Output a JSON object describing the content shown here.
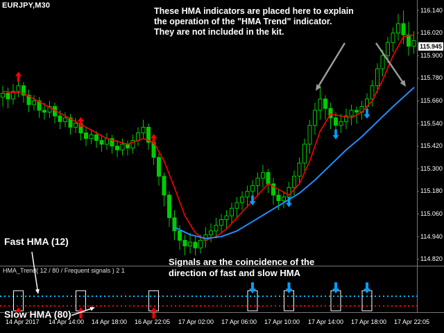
{
  "window": {
    "symbol_label": "EURJPY,M30"
  },
  "annotations": {
    "explain": {
      "lines": [
        "These HMA indicators are placed here to explain",
        "the operation of the \"HMA Trend\" indicator.",
        "They are not included in the kit."
      ]
    },
    "fast_hma_label": "Fast HMA (12)",
    "slow_hma_label": "Slow HMA (80)",
    "signals_note": {
      "lines": [
        "Signals are the coincidence of the",
        "direction of fast and slow HMA"
      ]
    }
  },
  "indicator_pane": {
    "label": "HMA_Trend( 12 / 80 / Frequent signals ) 2 1"
  },
  "price_scale": {
    "labels": [
      "116.140",
      "116.020",
      "115.900",
      "115.780",
      "115.660",
      "115.540",
      "115.420",
      "115.300",
      "115.180",
      "115.060",
      "114.940",
      "114.820"
    ],
    "current_price": "115.945"
  },
  "time_scale": {
    "labels": [
      "14 Apr 2017",
      "14 Apr 14:00",
      "14 Apr 18:00",
      "16 Apr 22:05",
      "17 Apr 02:00",
      "17 Apr 06:00",
      "17 Apr 10:00",
      "17 Apr 14:00",
      "17 Apr 18:00",
      "17 Apr 22:05"
    ]
  },
  "colors": {
    "background": "#000000",
    "candle": "#00CC00",
    "fast_hma": "#FF0000",
    "slow_hma": "#1E90FF",
    "buy": "#00A0FF",
    "sell": "#FF0000",
    "pane_top_dots": "#00BFFF",
    "pane_bottom_dots": "#FF0000",
    "separator": "#787878",
    "annotation_arrow": "#9A9A9A",
    "signal_box": "#FFFFFF"
  },
  "chart_data": {
    "type": "candlestick",
    "symbol": "EURJPY",
    "timeframe": "M30",
    "y_axis": {
      "ticks": [
        116.14,
        116.02,
        115.9,
        115.78,
        115.66,
        115.54,
        115.42,
        115.3,
        115.18,
        115.06,
        114.94,
        114.82
      ],
      "current": 115.945
    },
    "x_axis": {
      "ticks": [
        "14 Apr 2017",
        "14 Apr 14:00",
        "14 Apr 18:00",
        "16 Apr 22:05",
        "17 Apr 02:00",
        "17 Apr 06:00",
        "17 Apr 10:00",
        "17 Apr 14:00",
        "17 Apr 18:00",
        "17 Apr 22:05"
      ]
    },
    "candles": [
      [
        115.68,
        115.74,
        115.63,
        115.7
      ],
      [
        115.7,
        115.73,
        115.62,
        115.67
      ],
      [
        115.67,
        115.75,
        115.64,
        115.71
      ],
      [
        115.71,
        115.8,
        115.68,
        115.74
      ],
      [
        115.74,
        115.76,
        115.65,
        115.69
      ],
      [
        115.69,
        115.72,
        115.6,
        115.64
      ],
      [
        115.64,
        115.69,
        115.61,
        115.66
      ],
      [
        115.66,
        115.68,
        115.57,
        115.61
      ],
      [
        115.61,
        115.65,
        115.56,
        115.6
      ],
      [
        115.6,
        115.66,
        115.57,
        115.63
      ],
      [
        115.63,
        115.65,
        115.54,
        115.58
      ],
      [
        115.58,
        115.61,
        115.51,
        115.55
      ],
      [
        115.55,
        115.6,
        115.52,
        115.57
      ],
      [
        115.57,
        115.59,
        115.48,
        115.52
      ],
      [
        115.52,
        115.57,
        115.49,
        115.54
      ],
      [
        115.54,
        115.56,
        115.45,
        115.49
      ],
      [
        115.49,
        115.52,
        115.42,
        115.46
      ],
      [
        115.46,
        115.51,
        115.43,
        115.48
      ],
      [
        115.48,
        115.5,
        115.41,
        115.45
      ],
      [
        115.45,
        115.48,
        115.39,
        115.43
      ],
      [
        115.43,
        115.49,
        115.4,
        115.46
      ],
      [
        115.46,
        115.48,
        115.38,
        115.42
      ],
      [
        115.42,
        115.45,
        115.36,
        115.4
      ],
      [
        115.4,
        115.46,
        115.37,
        115.43
      ],
      [
        115.43,
        115.45,
        115.37,
        115.41
      ],
      [
        115.41,
        115.48,
        115.38,
        115.45
      ],
      [
        115.45,
        115.52,
        115.42,
        115.49
      ],
      [
        115.49,
        115.56,
        115.46,
        115.52
      ],
      [
        115.52,
        115.54,
        115.4,
        115.44
      ],
      [
        115.44,
        115.47,
        115.32,
        115.36
      ],
      [
        115.36,
        115.38,
        115.21,
        115.26
      ],
      [
        115.26,
        115.28,
        115.1,
        115.16
      ],
      [
        115.16,
        115.18,
        114.99,
        115.04
      ],
      [
        115.04,
        115.08,
        114.92,
        114.97
      ],
      [
        114.97,
        115.0,
        114.87,
        114.92
      ],
      [
        114.92,
        114.95,
        114.84,
        114.89
      ],
      [
        114.89,
        114.96,
        114.85,
        114.91
      ],
      [
        114.91,
        114.94,
        114.84,
        114.88
      ],
      [
        114.88,
        114.95,
        114.85,
        114.92
      ],
      [
        114.92,
        114.99,
        114.88,
        114.95
      ],
      [
        114.95,
        115.01,
        114.91,
        114.97
      ],
      [
        114.97,
        115.04,
        114.93,
        115.0
      ],
      [
        115.0,
        115.06,
        114.96,
        115.03
      ],
      [
        115.03,
        115.08,
        114.98,
        115.05
      ],
      [
        115.05,
        115.12,
        115.01,
        115.09
      ],
      [
        115.09,
        115.15,
        115.04,
        115.12
      ],
      [
        115.12,
        115.18,
        115.08,
        115.15
      ],
      [
        115.15,
        115.21,
        115.1,
        115.18
      ],
      [
        115.18,
        115.24,
        115.12,
        115.21
      ],
      [
        115.21,
        115.28,
        115.16,
        115.25
      ],
      [
        115.25,
        115.32,
        115.2,
        115.28
      ],
      [
        115.28,
        115.3,
        115.17,
        115.22
      ],
      [
        115.22,
        115.25,
        115.11,
        115.16
      ],
      [
        115.16,
        115.19,
        115.08,
        115.13
      ],
      [
        115.13,
        115.18,
        115.09,
        115.15
      ],
      [
        115.15,
        115.23,
        115.11,
        115.2
      ],
      [
        115.2,
        115.29,
        115.16,
        115.26
      ],
      [
        115.26,
        115.36,
        115.22,
        115.33
      ],
      [
        115.33,
        115.46,
        115.29,
        115.43
      ],
      [
        115.43,
        115.56,
        115.38,
        115.53
      ],
      [
        115.53,
        115.65,
        115.48,
        115.61
      ],
      [
        115.61,
        115.74,
        115.56,
        115.67
      ],
      [
        115.67,
        115.69,
        115.56,
        115.62
      ],
      [
        115.62,
        115.65,
        115.51,
        115.57
      ],
      [
        115.57,
        115.6,
        115.47,
        115.53
      ],
      [
        115.53,
        115.59,
        115.49,
        115.55
      ],
      [
        115.55,
        115.62,
        115.51,
        115.58
      ],
      [
        115.58,
        115.64,
        115.53,
        115.61
      ],
      [
        115.61,
        115.63,
        115.54,
        115.6
      ],
      [
        115.6,
        115.66,
        115.56,
        115.63
      ],
      [
        115.63,
        115.7,
        115.58,
        115.67
      ],
      [
        115.67,
        115.77,
        115.63,
        115.74
      ],
      [
        115.74,
        115.86,
        115.7,
        115.83
      ],
      [
        115.83,
        115.93,
        115.79,
        115.9
      ],
      [
        115.9,
        116.0,
        115.86,
        115.97
      ],
      [
        115.97,
        116.05,
        115.92,
        116.02
      ],
      [
        116.02,
        116.12,
        115.98,
        116.07
      ],
      [
        116.07,
        116.14,
        115.96,
        116.01
      ],
      [
        116.01,
        116.08,
        115.9,
        115.95
      ],
      [
        115.95,
        116.03,
        115.91,
        115.98
      ]
    ],
    "series": [
      {
        "name": "Fast HMA (12)",
        "color": "#FF0000",
        "points": [
          [
            0,
            115.71
          ],
          [
            4,
            115.7
          ],
          [
            8,
            115.64
          ],
          [
            12,
            115.58
          ],
          [
            16,
            115.52
          ],
          [
            20,
            115.46
          ],
          [
            24,
            115.43
          ],
          [
            27,
            115.46
          ],
          [
            29,
            115.44
          ],
          [
            31,
            115.34
          ],
          [
            33,
            115.2
          ],
          [
            35,
            115.05
          ],
          [
            37,
            114.96
          ],
          [
            39,
            114.92
          ],
          [
            41,
            114.94
          ],
          [
            43,
            114.98
          ],
          [
            45,
            115.04
          ],
          [
            47,
            115.1
          ],
          [
            49,
            115.16
          ],
          [
            51,
            115.22
          ],
          [
            53,
            115.19
          ],
          [
            55,
            115.16
          ],
          [
            57,
            115.22
          ],
          [
            59,
            115.34
          ],
          [
            61,
            115.5
          ],
          [
            63,
            115.59
          ],
          [
            65,
            115.58
          ],
          [
            67,
            115.57
          ],
          [
            69,
            115.6
          ],
          [
            71,
            115.66
          ],
          [
            73,
            115.77
          ],
          [
            75,
            115.9
          ],
          [
            77,
            116.0
          ],
          [
            79,
            116.01
          ]
        ]
      },
      {
        "name": "Slow HMA (80)",
        "color": "#1E90FF",
        "points": [
          [
            33,
            114.99
          ],
          [
            36,
            114.95
          ],
          [
            39,
            114.93
          ],
          [
            42,
            114.94
          ],
          [
            45,
            114.97
          ],
          [
            48,
            115.02
          ],
          [
            51,
            115.07
          ],
          [
            54,
            115.12
          ],
          [
            57,
            115.17
          ],
          [
            60,
            115.24
          ],
          [
            63,
            115.32
          ],
          [
            66,
            115.4
          ],
          [
            69,
            115.47
          ],
          [
            72,
            115.55
          ],
          [
            75,
            115.63
          ],
          [
            77,
            115.68
          ],
          [
            79,
            115.73
          ]
        ]
      }
    ],
    "signals": [
      {
        "bar": 3,
        "type": "sell"
      },
      {
        "bar": 15,
        "type": "sell"
      },
      {
        "bar": 29,
        "type": "sell"
      },
      {
        "bar": 48,
        "type": "buy"
      },
      {
        "bar": 55,
        "type": "buy"
      },
      {
        "bar": 64,
        "type": "buy"
      },
      {
        "bar": 70,
        "type": "buy"
      }
    ]
  }
}
